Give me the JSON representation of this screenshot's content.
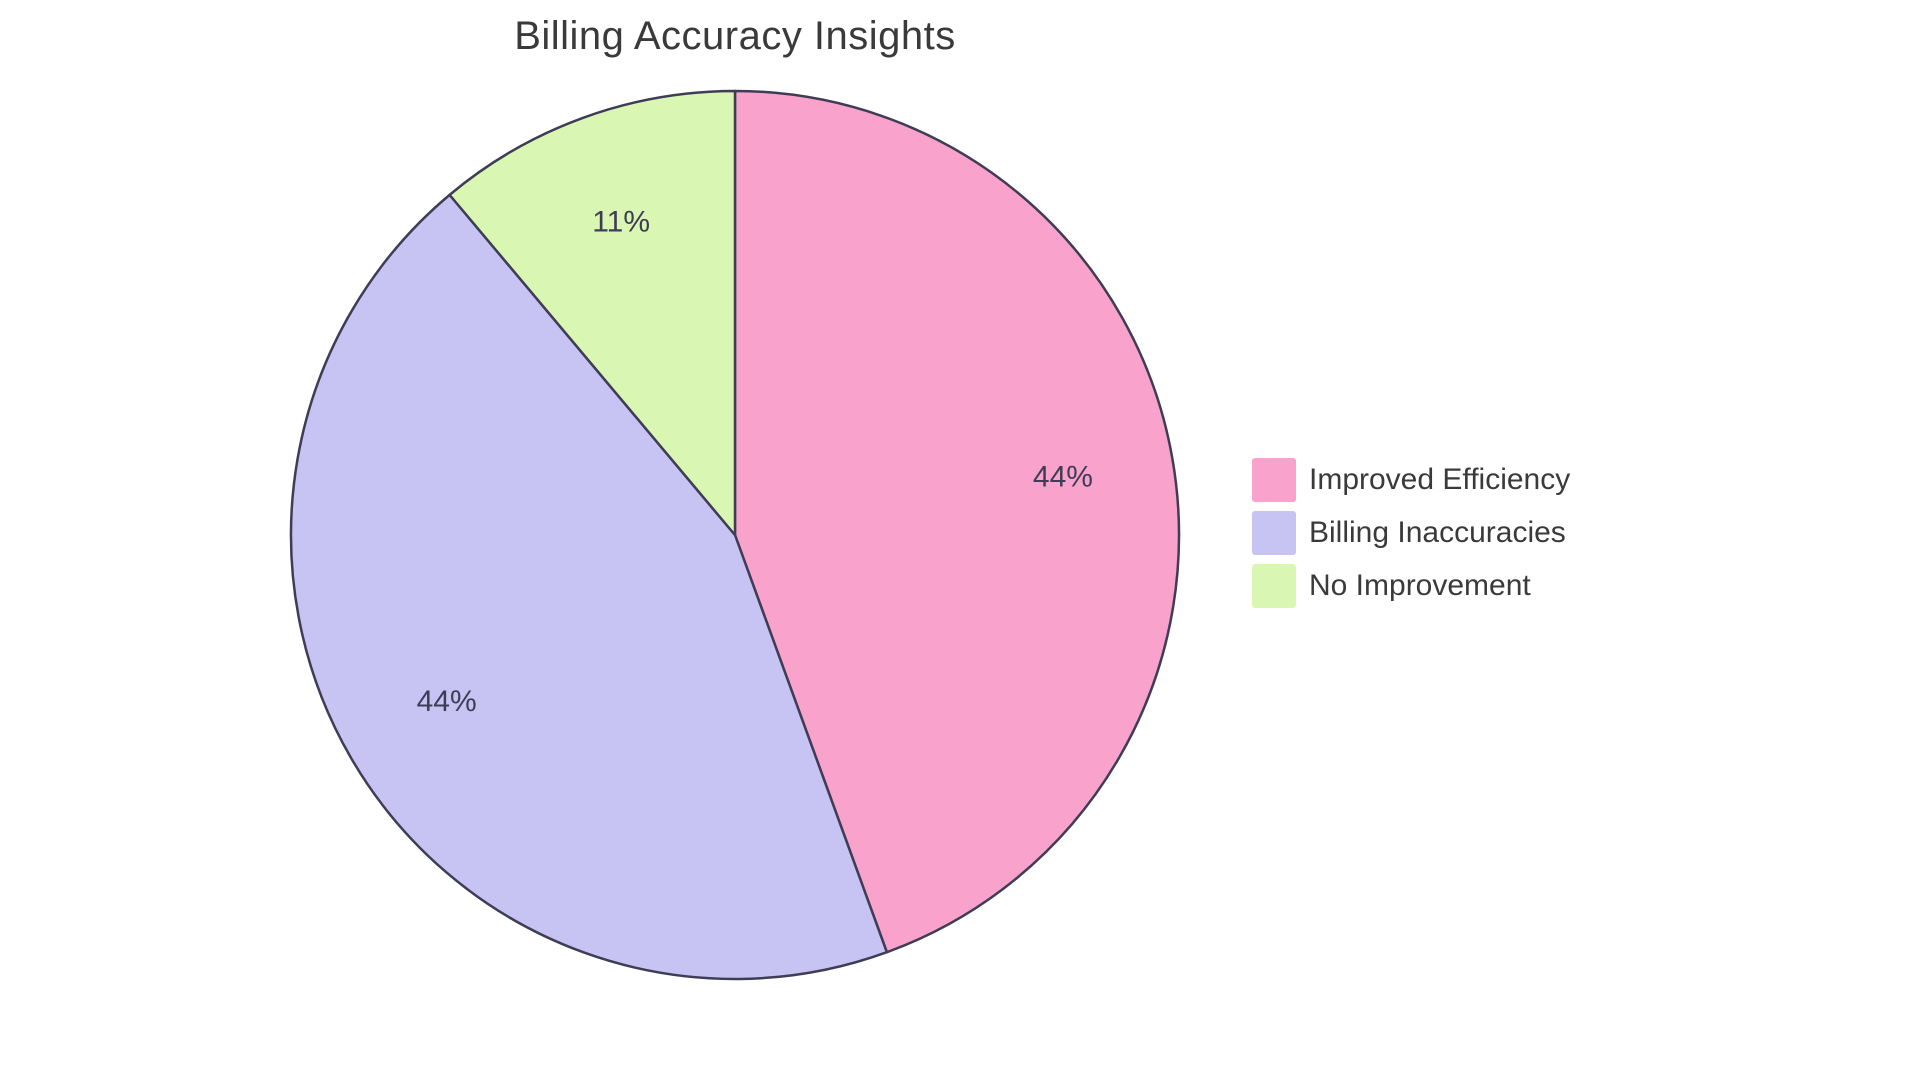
{
  "chart_data": {
    "type": "pie",
    "title": "Billing Accuracy Insights",
    "slices": [
      {
        "label": "Improved Efficiency",
        "value": 44,
        "percent_label": "44%",
        "color": "#F9A2CC"
      },
      {
        "label": "Billing Inaccuracies",
        "value": 44,
        "percent_label": "44%",
        "color": "#C7C4F4"
      },
      {
        "label": "No Improvement",
        "value": 11,
        "percent_label": "11%",
        "color": "#D9F7B3"
      }
    ],
    "start_angle": "12-o'clock",
    "direction": "clockwise",
    "stroke_color": "#3F3D56",
    "stroke_width": 2.5,
    "label_radius_fraction": 0.75,
    "label_color": "#3F3D56",
    "title_color": "#3A3A3A",
    "legend_position": "right",
    "background": "#FFFFFF"
  }
}
